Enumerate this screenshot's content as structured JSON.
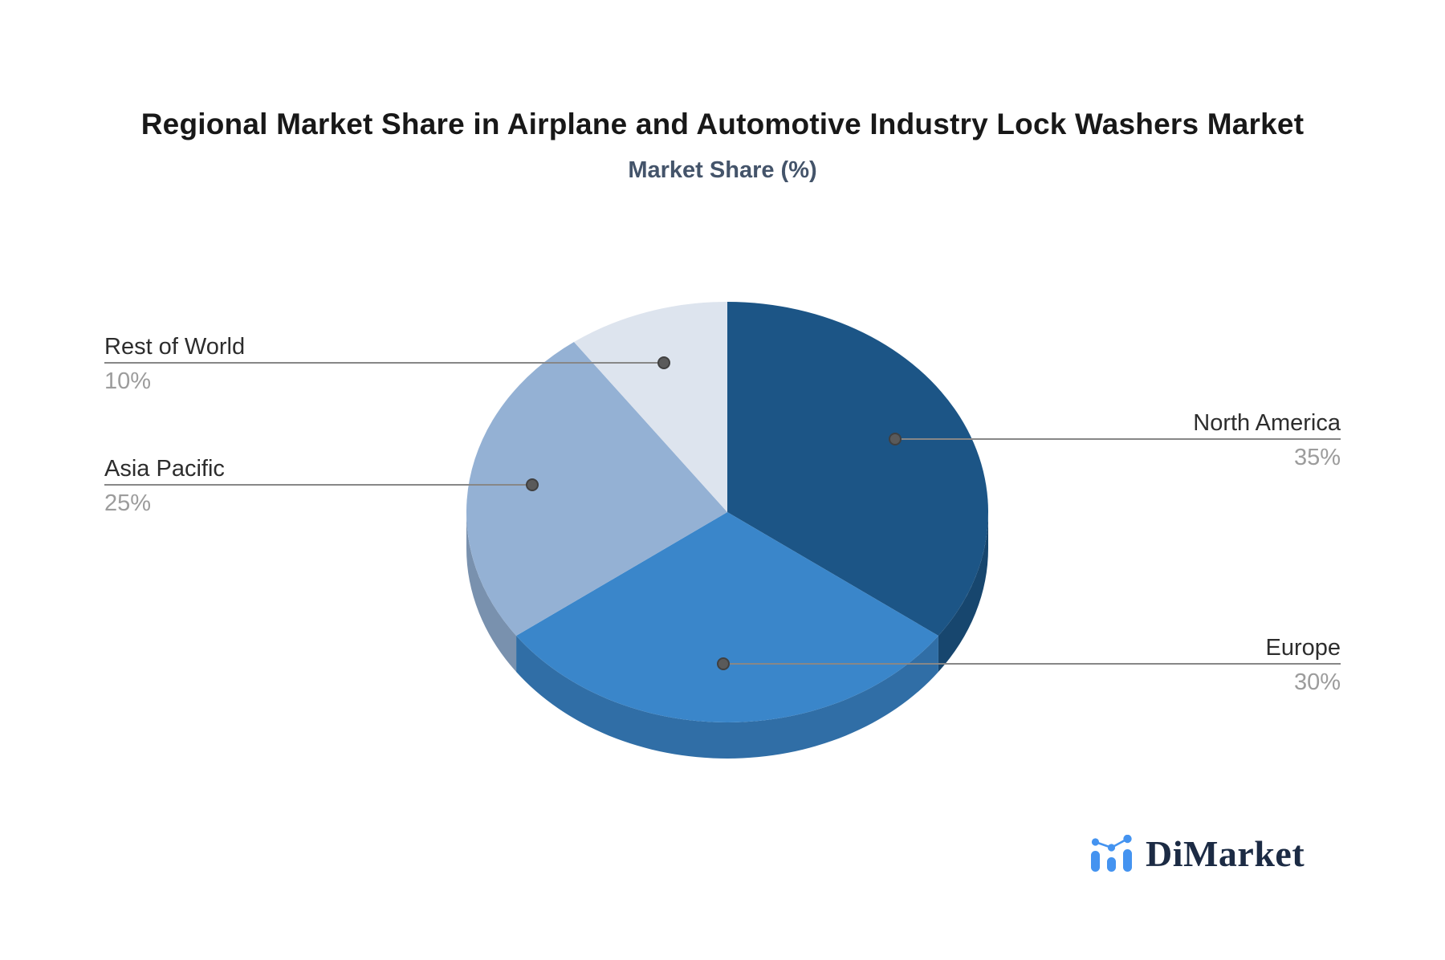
{
  "brand": {
    "name": "DiMarket",
    "icon": "bar-chart-logo-icon",
    "color": "#4493f0"
  },
  "chart_data": {
    "type": "pie",
    "title": "Regional Market Share in Airplane and Automotive Industry Lock Washers Market",
    "subtitle": "Market Share (%)",
    "unit": "%",
    "style": "3d-pie",
    "legend_position": "none",
    "labels_position": "callout-lines",
    "start_angle_deg": 0,
    "direction": "clockwise",
    "slices": [
      {
        "label": "North America",
        "value": 35,
        "pct_label": "35%",
        "color": "#1c5586",
        "callout_side": "right"
      },
      {
        "label": "Europe",
        "value": 30,
        "pct_label": "30%",
        "color": "#3a86ca",
        "callout_side": "right"
      },
      {
        "label": "Asia Pacific",
        "value": 25,
        "pct_label": "25%",
        "color": "#94b1d4",
        "callout_side": "left"
      },
      {
        "label": "Rest of World",
        "value": 10,
        "pct_label": "10%",
        "color": "#dde4ee",
        "callout_side": "left"
      }
    ],
    "callout_text_color": "#2d2d2d",
    "callout_pct_color": "#9c9c9c",
    "leader_line_color": "#878787"
  }
}
